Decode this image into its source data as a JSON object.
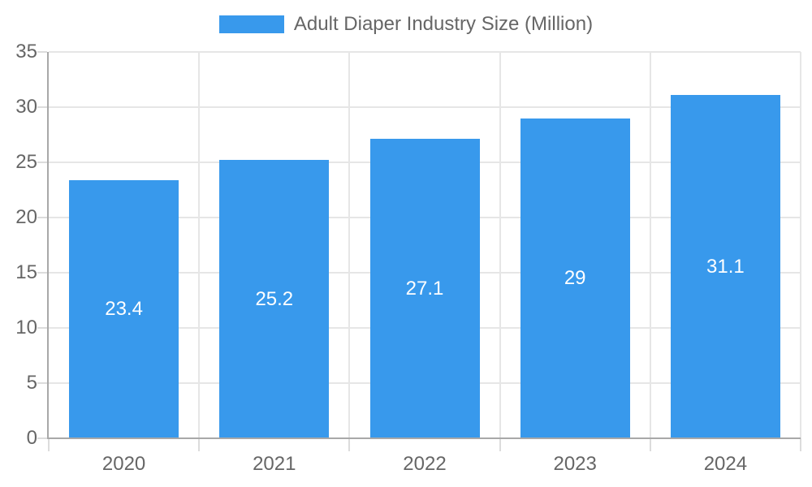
{
  "legend": {
    "entries": [
      {
        "label": "Adult Diaper Industry Size (Million)",
        "swatch_color": "#3899EC"
      }
    ],
    "position": "top-center"
  },
  "chart_data": {
    "type": "bar",
    "title": "",
    "categories": [
      "2020",
      "2021",
      "2022",
      "2023",
      "2024"
    ],
    "values": [
      23.4,
      25.2,
      27.1,
      29,
      31.1
    ],
    "data_labels": [
      "23.4",
      "25.2",
      "27.1",
      "29",
      "31.1"
    ],
    "series_name": "Adult Diaper Industry Size (Million)",
    "xlabel": "",
    "ylabel": "",
    "ylim": [
      0,
      35
    ],
    "yticks": [
      0,
      5,
      10,
      15,
      20,
      25,
      30,
      35
    ],
    "grid": true,
    "legend_position": "top",
    "colors": {
      "bar": "#3899EC",
      "data_label": "#FFFFFF",
      "grid": "#E6E6E6",
      "tick_mark": "#DCDCDC",
      "axis": "#A8A8A8",
      "tick_label": "#666666",
      "background": "#FFFFFF"
    }
  }
}
